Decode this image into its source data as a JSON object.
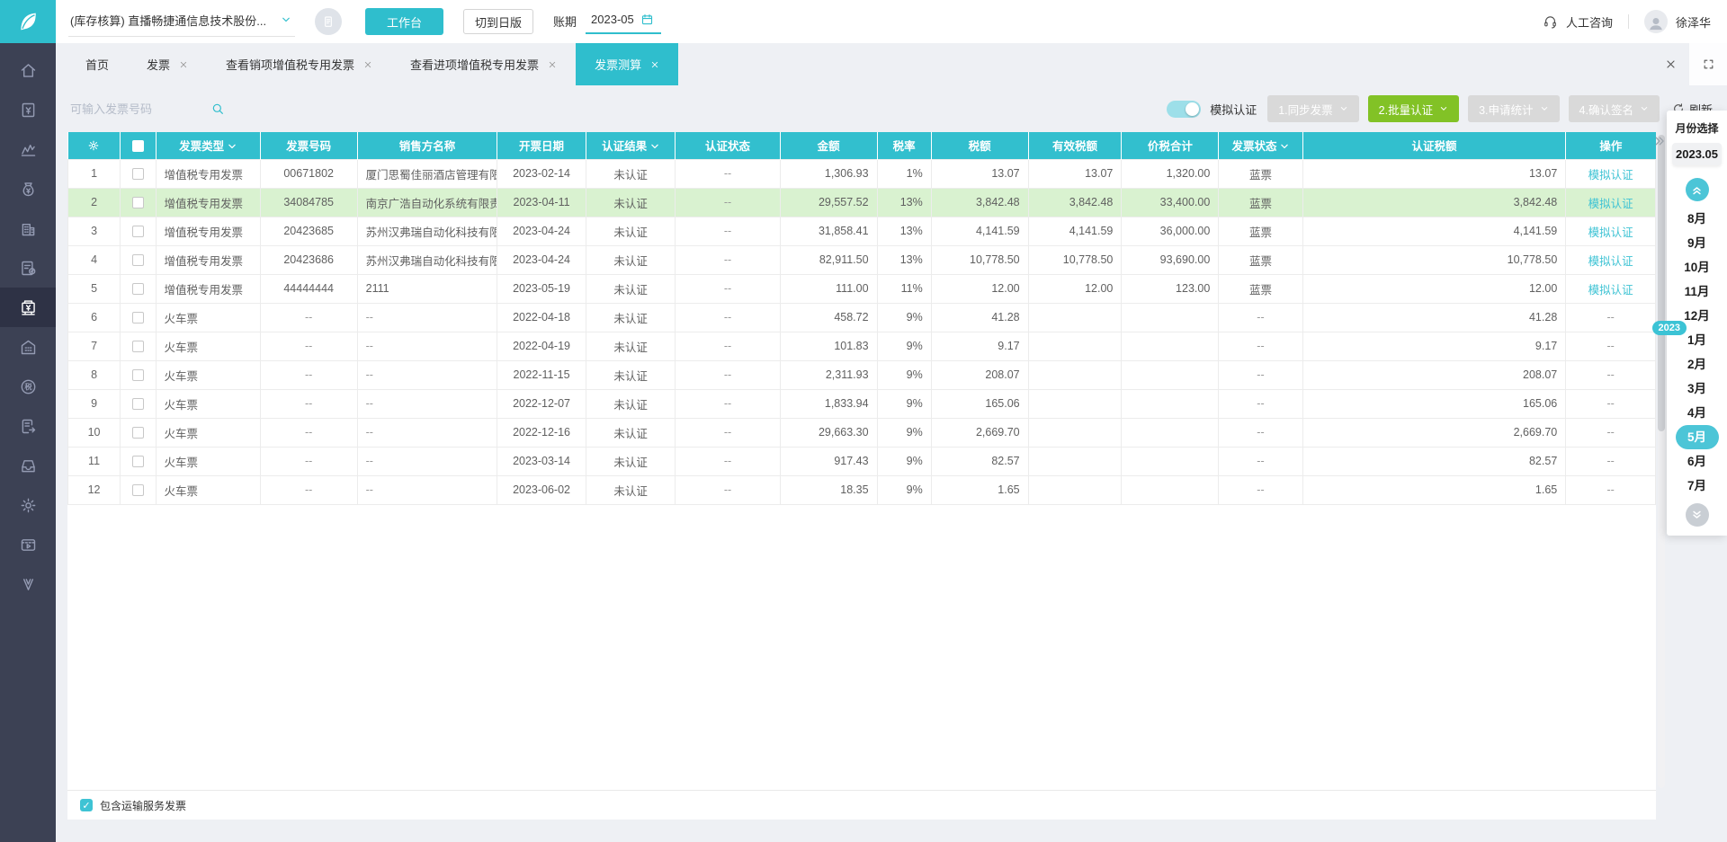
{
  "accent_color": "#2fbecd",
  "green_color": "#82c226",
  "highlight_row_color": "#d9f2d0",
  "header": {
    "company_selector": "(库存核算) 直播畅捷通信息技术股份...",
    "workbench_button": "工作台",
    "switch_version_button": "切到日版",
    "period_label": "账期",
    "period_value": "2023-05",
    "support_label": "人工咨询",
    "user_name": "徐泽华"
  },
  "sidebar": {
    "items": [
      {
        "name": "home",
        "icon": "home-icon"
      },
      {
        "name": "voucher",
        "icon": "voucher-icon"
      },
      {
        "name": "reports",
        "icon": "chart-icon"
      },
      {
        "name": "funds",
        "icon": "money-bag-icon"
      },
      {
        "name": "assets",
        "icon": "building-icon"
      },
      {
        "name": "checkout",
        "icon": "report-check-icon"
      },
      {
        "name": "invoice",
        "icon": "invoice-icon",
        "active": true
      },
      {
        "name": "inventory",
        "icon": "warehouse-icon"
      },
      {
        "name": "tax",
        "icon": "tax-icon"
      },
      {
        "name": "salary",
        "icon": "doc-export-icon"
      },
      {
        "name": "archive",
        "icon": "inbox-icon"
      },
      {
        "name": "settings",
        "icon": "gear-icon"
      },
      {
        "name": "tutorial",
        "icon": "video-icon"
      },
      {
        "name": "brand",
        "icon": "v-logo-icon"
      }
    ]
  },
  "tabs": {
    "items": [
      {
        "name": "home",
        "label": "首页",
        "closable": false,
        "active": false
      },
      {
        "name": "invoice",
        "label": "发票",
        "closable": true,
        "active": false
      },
      {
        "name": "view-output-vat",
        "label": "查看销项增值税专用发票",
        "closable": true,
        "active": false
      },
      {
        "name": "view-input-vat",
        "label": "查看进项增值税专用发票",
        "closable": true,
        "active": false
      },
      {
        "name": "invoice-calc",
        "label": "发票测算",
        "closable": true,
        "active": true
      }
    ]
  },
  "toolbar": {
    "search_placeholder": "可输入发票号码",
    "simulate_toggle_label": "模拟认证",
    "toggle_on": true,
    "buttons": [
      {
        "label": "1.同步发票",
        "style": "disabled",
        "dropdown": true
      },
      {
        "label": "2.批量认证",
        "style": "primary-green",
        "dropdown": true
      },
      {
        "label": "3.申请统计",
        "style": "disabled",
        "dropdown": true
      },
      {
        "label": "4.确认签名",
        "style": "disabled",
        "dropdown": true
      }
    ],
    "refresh_label": "刷新"
  },
  "table": {
    "columns": [
      {
        "key": "type",
        "label": "发票类型",
        "sortable": true,
        "align": "left"
      },
      {
        "key": "number",
        "label": "发票号码",
        "align": "center"
      },
      {
        "key": "seller",
        "label": "销售方名称",
        "align": "left"
      },
      {
        "key": "date",
        "label": "开票日期",
        "align": "center"
      },
      {
        "key": "result",
        "label": "认证结果",
        "sortable": true,
        "align": "center"
      },
      {
        "key": "status",
        "label": "认证状态",
        "align": "center"
      },
      {
        "key": "amount",
        "label": "金额",
        "align": "right"
      },
      {
        "key": "tax_rate",
        "label": "税率",
        "align": "right"
      },
      {
        "key": "tax",
        "label": "税额",
        "align": "right"
      },
      {
        "key": "valid_tax",
        "label": "有效税额",
        "align": "right"
      },
      {
        "key": "total",
        "label": "价税合计",
        "align": "right"
      },
      {
        "key": "invoice_status",
        "label": "发票状态",
        "sortable": true,
        "align": "center"
      },
      {
        "key": "certified_tax",
        "label": "认证税额",
        "align": "right"
      },
      {
        "key": "action",
        "label": "操作",
        "align": "center"
      }
    ],
    "rows": [
      {
        "index": 1,
        "type": "增值税专用发票",
        "number": "00671802",
        "seller": "厦门思蜀佳丽酒店管理有限",
        "date": "2023-02-14",
        "result": "未认证",
        "status": "--",
        "amount": "1,306.93",
        "tax_rate": "1%",
        "tax": "13.07",
        "valid_tax": "13.07",
        "total": "1,320.00",
        "invoice_status": "蓝票",
        "certified_tax": "13.07",
        "action": "模拟认证",
        "highlighted": false
      },
      {
        "index": 2,
        "type": "增值税专用发票",
        "number": "34084785",
        "seller": "南京广浩自动化系统有限责",
        "date": "2023-04-11",
        "result": "未认证",
        "status": "--",
        "amount": "29,557.52",
        "tax_rate": "13%",
        "tax": "3,842.48",
        "valid_tax": "3,842.48",
        "total": "33,400.00",
        "invoice_status": "蓝票",
        "certified_tax": "3,842.48",
        "action": "模拟认证",
        "highlighted": true
      },
      {
        "index": 3,
        "type": "增值税专用发票",
        "number": "20423685",
        "seller": "苏州汉弗瑞自动化科技有限",
        "date": "2023-04-24",
        "result": "未认证",
        "status": "--",
        "amount": "31,858.41",
        "tax_rate": "13%",
        "tax": "4,141.59",
        "valid_tax": "4,141.59",
        "total": "36,000.00",
        "invoice_status": "蓝票",
        "certified_tax": "4,141.59",
        "action": "模拟认证",
        "highlighted": false
      },
      {
        "index": 4,
        "type": "增值税专用发票",
        "number": "20423686",
        "seller": "苏州汉弗瑞自动化科技有限",
        "date": "2023-04-24",
        "result": "未认证",
        "status": "--",
        "amount": "82,911.50",
        "tax_rate": "13%",
        "tax": "10,778.50",
        "valid_tax": "10,778.50",
        "total": "93,690.00",
        "invoice_status": "蓝票",
        "certified_tax": "10,778.50",
        "action": "模拟认证",
        "highlighted": false
      },
      {
        "index": 5,
        "type": "增值税专用发票",
        "number": "44444444",
        "seller": "2111",
        "date": "2023-05-19",
        "result": "未认证",
        "status": "--",
        "amount": "111.00",
        "tax_rate": "11%",
        "tax": "12.00",
        "valid_tax": "12.00",
        "total": "123.00",
        "invoice_status": "蓝票",
        "certified_tax": "12.00",
        "action": "模拟认证",
        "highlighted": false
      },
      {
        "index": 6,
        "type": "火车票",
        "number": "--",
        "seller": "--",
        "date": "2022-04-18",
        "result": "未认证",
        "status": "--",
        "amount": "458.72",
        "tax_rate": "9%",
        "tax": "41.28",
        "valid_tax": "",
        "total": "",
        "invoice_status": "--",
        "certified_tax": "41.28",
        "action": "--",
        "highlighted": false
      },
      {
        "index": 7,
        "type": "火车票",
        "number": "--",
        "seller": "--",
        "date": "2022-04-19",
        "result": "未认证",
        "status": "--",
        "amount": "101.83",
        "tax_rate": "9%",
        "tax": "9.17",
        "valid_tax": "",
        "total": "",
        "invoice_status": "--",
        "certified_tax": "9.17",
        "action": "--",
        "highlighted": false
      },
      {
        "index": 8,
        "type": "火车票",
        "number": "--",
        "seller": "--",
        "date": "2022-11-15",
        "result": "未认证",
        "status": "--",
        "amount": "2,311.93",
        "tax_rate": "9%",
        "tax": "208.07",
        "valid_tax": "",
        "total": "",
        "invoice_status": "--",
        "certified_tax": "208.07",
        "action": "--",
        "highlighted": false
      },
      {
        "index": 9,
        "type": "火车票",
        "number": "--",
        "seller": "--",
        "date": "2022-12-07",
        "result": "未认证",
        "status": "--",
        "amount": "1,833.94",
        "tax_rate": "9%",
        "tax": "165.06",
        "valid_tax": "",
        "total": "",
        "invoice_status": "--",
        "certified_tax": "165.06",
        "action": "--",
        "highlighted": false
      },
      {
        "index": 10,
        "type": "火车票",
        "number": "--",
        "seller": "--",
        "date": "2022-12-16",
        "result": "未认证",
        "status": "--",
        "amount": "29,663.30",
        "tax_rate": "9%",
        "tax": "2,669.70",
        "valid_tax": "",
        "total": "",
        "invoice_status": "--",
        "certified_tax": "2,669.70",
        "action": "--",
        "highlighted": false
      },
      {
        "index": 11,
        "type": "火车票",
        "number": "--",
        "seller": "--",
        "date": "2023-03-14",
        "result": "未认证",
        "status": "--",
        "amount": "917.43",
        "tax_rate": "9%",
        "tax": "82.57",
        "valid_tax": "",
        "total": "",
        "invoice_status": "--",
        "certified_tax": "82.57",
        "action": "--",
        "highlighted": false
      },
      {
        "index": 12,
        "type": "火车票",
        "number": "--",
        "seller": "--",
        "date": "2023-06-02",
        "result": "未认证",
        "status": "--",
        "amount": "18.35",
        "tax_rate": "9%",
        "tax": "1.65",
        "valid_tax": "",
        "total": "",
        "invoice_status": "--",
        "certified_tax": "1.65",
        "action": "--",
        "highlighted": false
      }
    ]
  },
  "month_panel": {
    "title": "月份选择",
    "current_period": "2023.05",
    "months": [
      {
        "label": "8月"
      },
      {
        "label": "9月"
      },
      {
        "label": "10月"
      },
      {
        "label": "11月"
      },
      {
        "label": "12月"
      },
      {
        "label": "1月",
        "year_badge": "2023"
      },
      {
        "label": "2月"
      },
      {
        "label": "3月"
      },
      {
        "label": "4月"
      },
      {
        "label": "5月",
        "selected": true
      },
      {
        "label": "6月"
      },
      {
        "label": "7月"
      }
    ]
  },
  "footer": {
    "checkbox_label": "包含运输服务发票",
    "checked": true
  }
}
